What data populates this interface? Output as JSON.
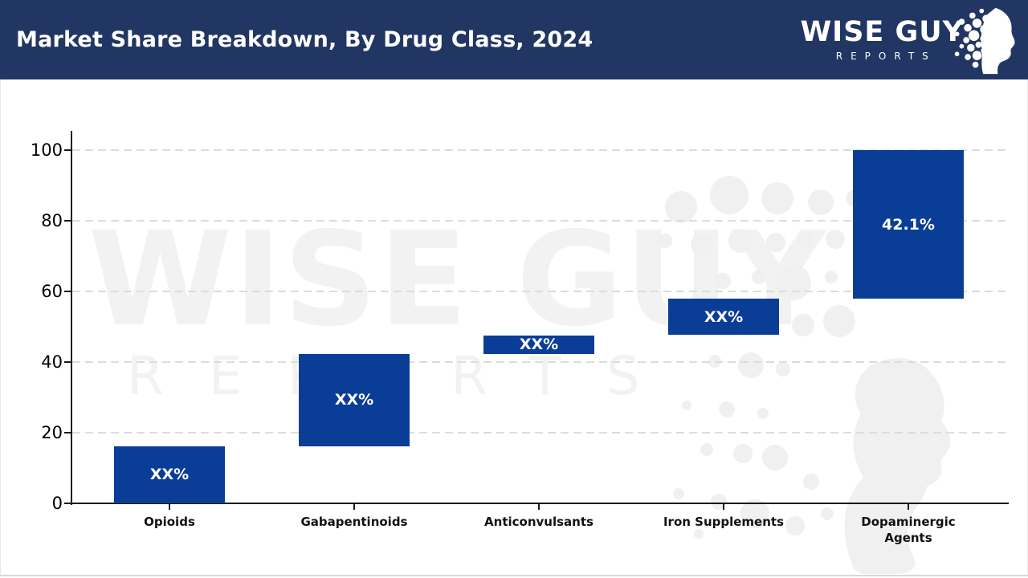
{
  "header": {
    "title": "Market Share Breakdown, By Drug Class, 2024",
    "logo": {
      "line1": "WISE GUY",
      "line2": "REPORTS"
    }
  },
  "watermark": {
    "line1": "WISE GUY",
    "line2": "REPORTS"
  },
  "chart_data": {
    "type": "bar",
    "subtype": "waterfall-floating-bars",
    "title": "Market Share Breakdown, By Drug Class, 2024",
    "categories": [
      "Opioids",
      "Gabapentinoids",
      "Anticonvulsants",
      "Iron Supplements",
      "Dopaminergic Agents"
    ],
    "segments": [
      {
        "category": "Opioids",
        "start": 0,
        "end": 16.2,
        "label": "XX%"
      },
      {
        "category": "Gabapentinoids",
        "start": 16.2,
        "end": 42.3,
        "label": "XX%"
      },
      {
        "category": "Anticonvulsants",
        "start": 42.3,
        "end": 47.5,
        "label": "XX%"
      },
      {
        "category": "Iron Supplements",
        "start": 47.7,
        "end": 57.9,
        "label": "XX%"
      },
      {
        "category": "Dopaminergic Agents",
        "start": 57.9,
        "end": 100,
        "label": "42.1%",
        "value": 42.1
      }
    ],
    "ylim": [
      0,
      105
    ],
    "yticks": [
      0,
      20,
      40,
      60,
      80,
      100
    ],
    "xlabel": "",
    "ylabel": "",
    "grid": "horizontal-dashed",
    "legend": "none",
    "bar_color": "#0a3d96",
    "bar_label_color": "#ffffff"
  },
  "colors": {
    "header_bg": "#213663",
    "bar": "#0a3d96",
    "axis": "#1a1a1a",
    "grid": "#dcdcdc",
    "watermark": "#f2f2f2",
    "border": "#d9d9d9"
  }
}
